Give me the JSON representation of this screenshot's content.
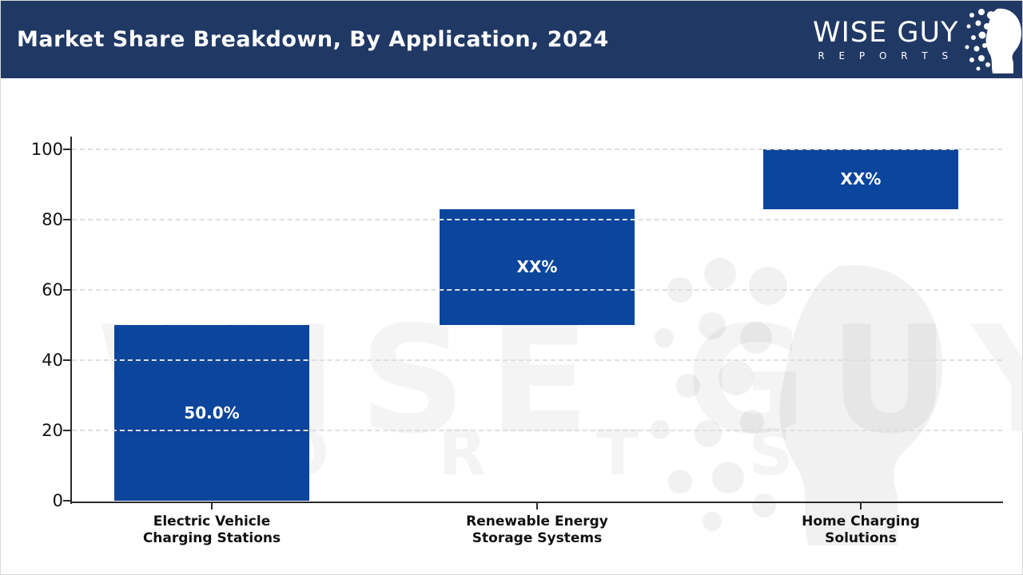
{
  "header": {
    "title": "Market Share Breakdown, By Application, 2024",
    "logo": {
      "name": "WISE GUY",
      "sub": "R E P O R T S"
    }
  },
  "watermark": {
    "line1": "WISE GUY",
    "line2": "P O R T S"
  },
  "chart_data": {
    "type": "bar",
    "subtype": "floating-segment (waterfall style)",
    "title": "Market Share Breakdown, By Application, 2024",
    "categories": [
      {
        "line1": "Electric Vehicle",
        "line2": "Charging Stations"
      },
      {
        "line1": "Renewable Energy",
        "line2": "Storage Systems"
      },
      {
        "line1": "Home Charging",
        "line2": "Solutions"
      }
    ],
    "segments": [
      {
        "category": "Electric Vehicle Charging Stations",
        "start": 0,
        "end": 50,
        "label": "50.0%"
      },
      {
        "category": "Renewable Energy Storage Systems",
        "start": 50,
        "end": 83,
        "label": "XX%"
      },
      {
        "category": "Home Charging Solutions",
        "start": 83,
        "end": 100,
        "label": "XX%"
      }
    ],
    "ylim": [
      0,
      100
    ],
    "yticks": [
      0,
      20,
      40,
      60,
      80,
      100
    ],
    "grid": "horizontal-dashed, drawn over bars",
    "legend": "none",
    "colors": {
      "bar": "#0b459c",
      "bar_label": "#ffffff",
      "grid": "#dedede",
      "axis": "#2b2b2b",
      "header_bg": "#203864",
      "header_text": "#ffffff",
      "text": "#111111"
    }
  }
}
